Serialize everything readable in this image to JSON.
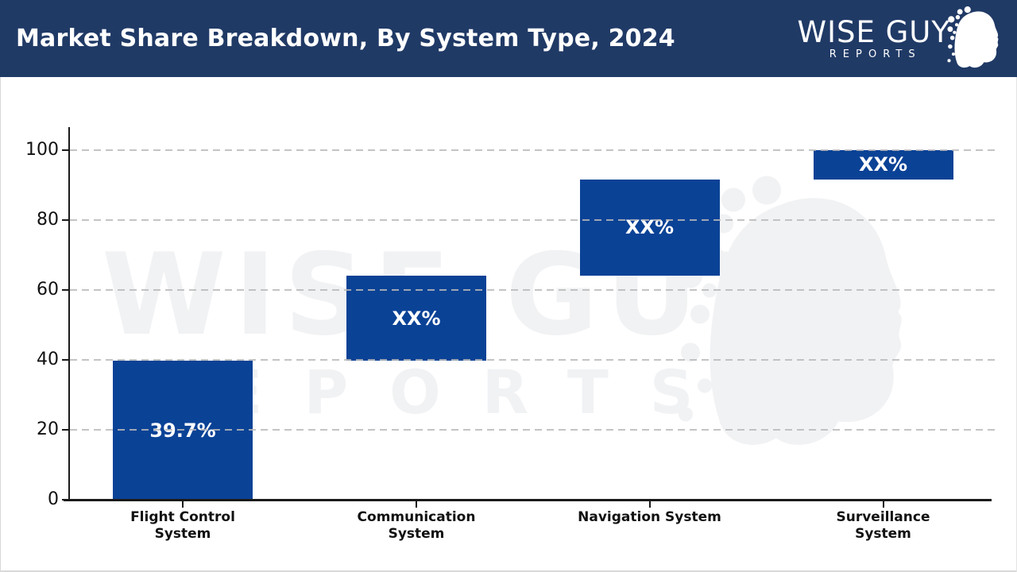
{
  "header": {
    "title": "Market Share Breakdown, By System Type, 2024",
    "logo": {
      "line1": "WISE GUY",
      "line2": "REPORTS"
    }
  },
  "watermark": {
    "line1": "WISE GUY",
    "line2": "REPORTS"
  },
  "chart_data": {
    "type": "bar",
    "subtype": "waterfall",
    "title": "Market Share Breakdown, By System Type, 2024",
    "categories": [
      "Flight Control\nSystem",
      "Communication\nSystem",
      "Navigation System",
      "Surveillance\nSystem"
    ],
    "values": [
      39.7,
      24.4,
      27.5,
      8.4
    ],
    "segments": [
      {
        "start": 0,
        "end": 39.7,
        "label": "39.7%"
      },
      {
        "start": 39.7,
        "end": 64.1,
        "label": "XX%"
      },
      {
        "start": 64.1,
        "end": 91.6,
        "label": "XX%"
      },
      {
        "start": 91.6,
        "end": 100,
        "label": "XX%"
      }
    ],
    "yticks": [
      0,
      20,
      40,
      60,
      80,
      100
    ],
    "ylim": [
      0,
      106
    ],
    "xlabel": "",
    "ylabel": "",
    "grid": "dashed horizontal, drawn over bars",
    "legend": "none"
  },
  "colors": {
    "header_bg": "#203a66",
    "bar_blue": "#0a4296",
    "bar_label": "#ffffff",
    "axis": "#1a1a1a",
    "gridline": "#bcbcbc",
    "watermark": "#f1f2f4",
    "page_bg": "#ffffff"
  }
}
